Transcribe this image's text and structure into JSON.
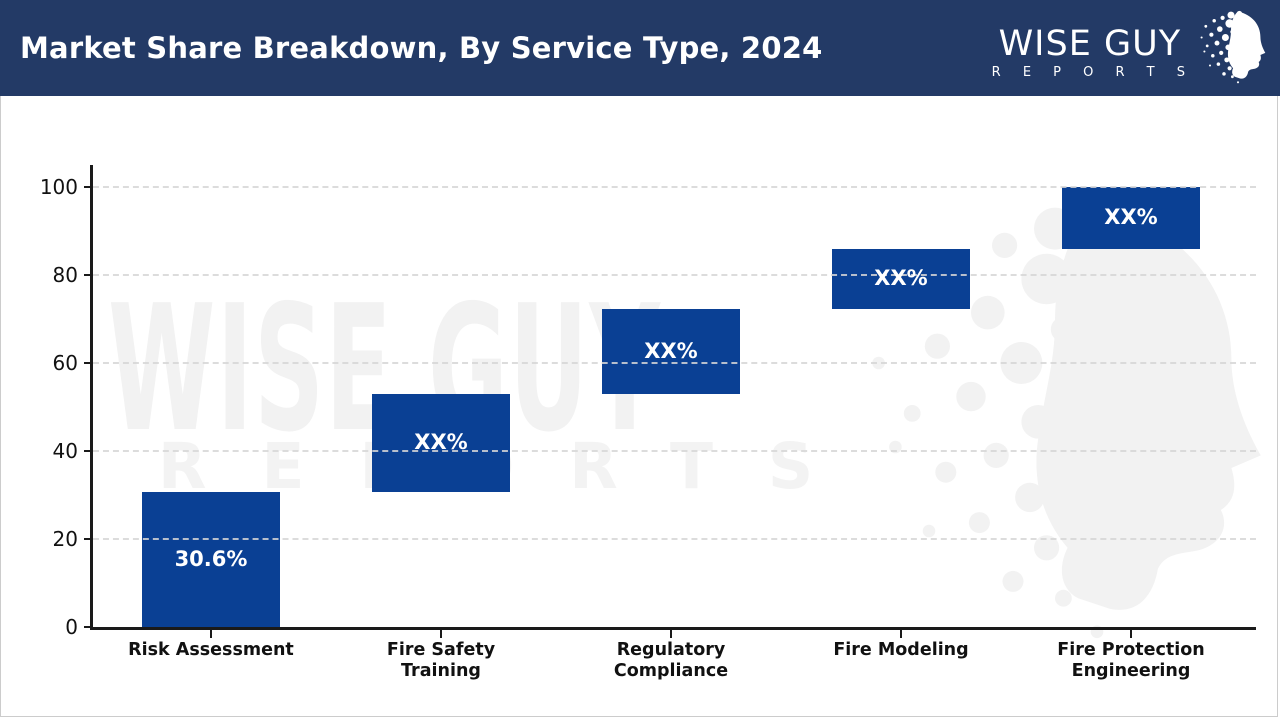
{
  "header": {
    "title": "Market Share Breakdown, By Service Type, 2024",
    "logo": {
      "name_line": "WISE GUY",
      "sub_line": "R E P O R T S"
    }
  },
  "watermark": {
    "name_line": "WISE GUY",
    "sub_line": "REPORTS"
  },
  "chart_data": {
    "type": "bar",
    "subtype": "waterfall",
    "title": "Market Share Breakdown, By Service Type, 2024",
    "categories": [
      "Risk Assessment",
      "Fire Safety\nTraining",
      "Regulatory\nCompliance",
      "Fire Modeling",
      "Fire Protection\nEngineering"
    ],
    "segments": [
      {
        "category": "Risk Assessment",
        "start": 0,
        "end": 30.6,
        "label": "30.6%"
      },
      {
        "category": "Fire Safety Training",
        "start": 30.6,
        "end": 53.0,
        "label": "XX%"
      },
      {
        "category": "Regulatory Compliance",
        "start": 53.0,
        "end": 72.2,
        "label": "XX%"
      },
      {
        "category": "Fire Modeling",
        "start": 72.2,
        "end": 85.9,
        "label": "XX%"
      },
      {
        "category": "Fire Protection Engineering",
        "start": 85.9,
        "end": 100,
        "label": "XX%"
      }
    ],
    "ylim": [
      0,
      100
    ],
    "yticks": [
      0,
      20,
      40,
      60,
      80,
      100
    ],
    "xlabel": "",
    "ylabel": "",
    "grid": "horizontal-dashed",
    "legend": null,
    "bar_color": "#0A4094",
    "value_label_color": "#ffffff"
  },
  "colors": {
    "header_bg": "#233A66",
    "bar": "#0A4094",
    "gridline": "#d6d6d6",
    "axis": "#1a1a1a",
    "watermark": "#f2f2f2"
  }
}
